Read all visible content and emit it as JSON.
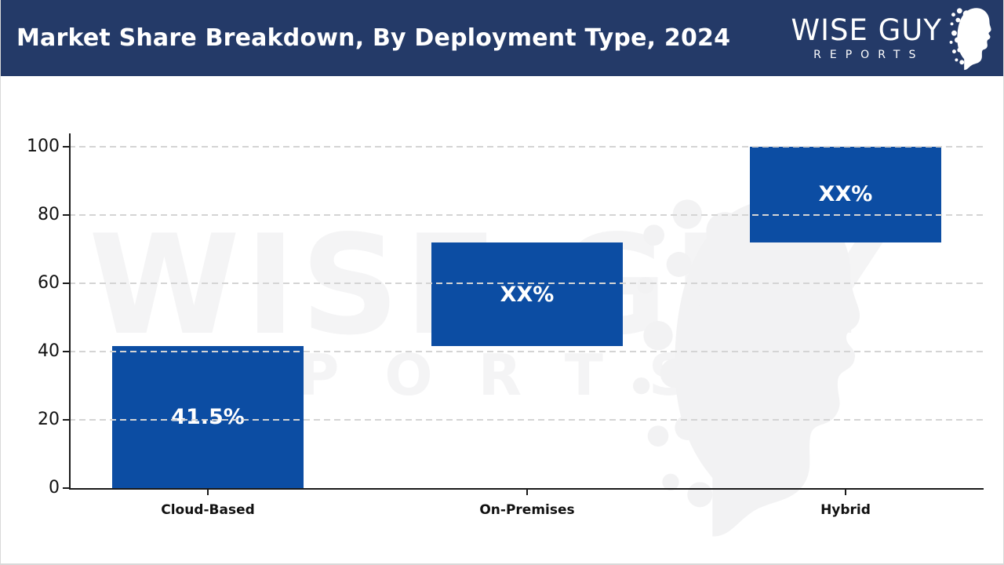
{
  "header": {
    "title": "Market Share Breakdown, By Deployment Type, 2024",
    "bg_color": "#243a68",
    "logo": {
      "line1": "WISE GUY",
      "line2": "REPORTS"
    }
  },
  "watermark": {
    "line1": "WISE GUY",
    "line2": "REPORTS"
  },
  "chart_data": {
    "type": "bar",
    "variant": "floating-segment-waterfall",
    "title": "Market Share Breakdown, By Deployment Type, 2024",
    "categories": [
      "Cloud-Based",
      "On-Premises",
      "Hybrid"
    ],
    "bars": [
      {
        "category": "Cloud-Based",
        "start": 0,
        "end": 41.5,
        "height": 41.5,
        "label": "41.5%"
      },
      {
        "category": "On-Premises",
        "start": 41.5,
        "end": 72,
        "height": 30.5,
        "label": "XX%"
      },
      {
        "category": "Hybrid",
        "start": 72,
        "end": 100,
        "height": 28,
        "label": "XX%"
      }
    ],
    "xlabel": "",
    "ylabel": "",
    "yticks": [
      0,
      20,
      40,
      60,
      80,
      100
    ],
    "ylim": [
      0,
      104
    ],
    "grid": "dashed-horizontal",
    "legend": "none",
    "bar_color": "#0c4da3",
    "bar_label_color": "#ffffff",
    "grid_color": "#d4d4d4",
    "axis_color": "#1a1a1a"
  }
}
